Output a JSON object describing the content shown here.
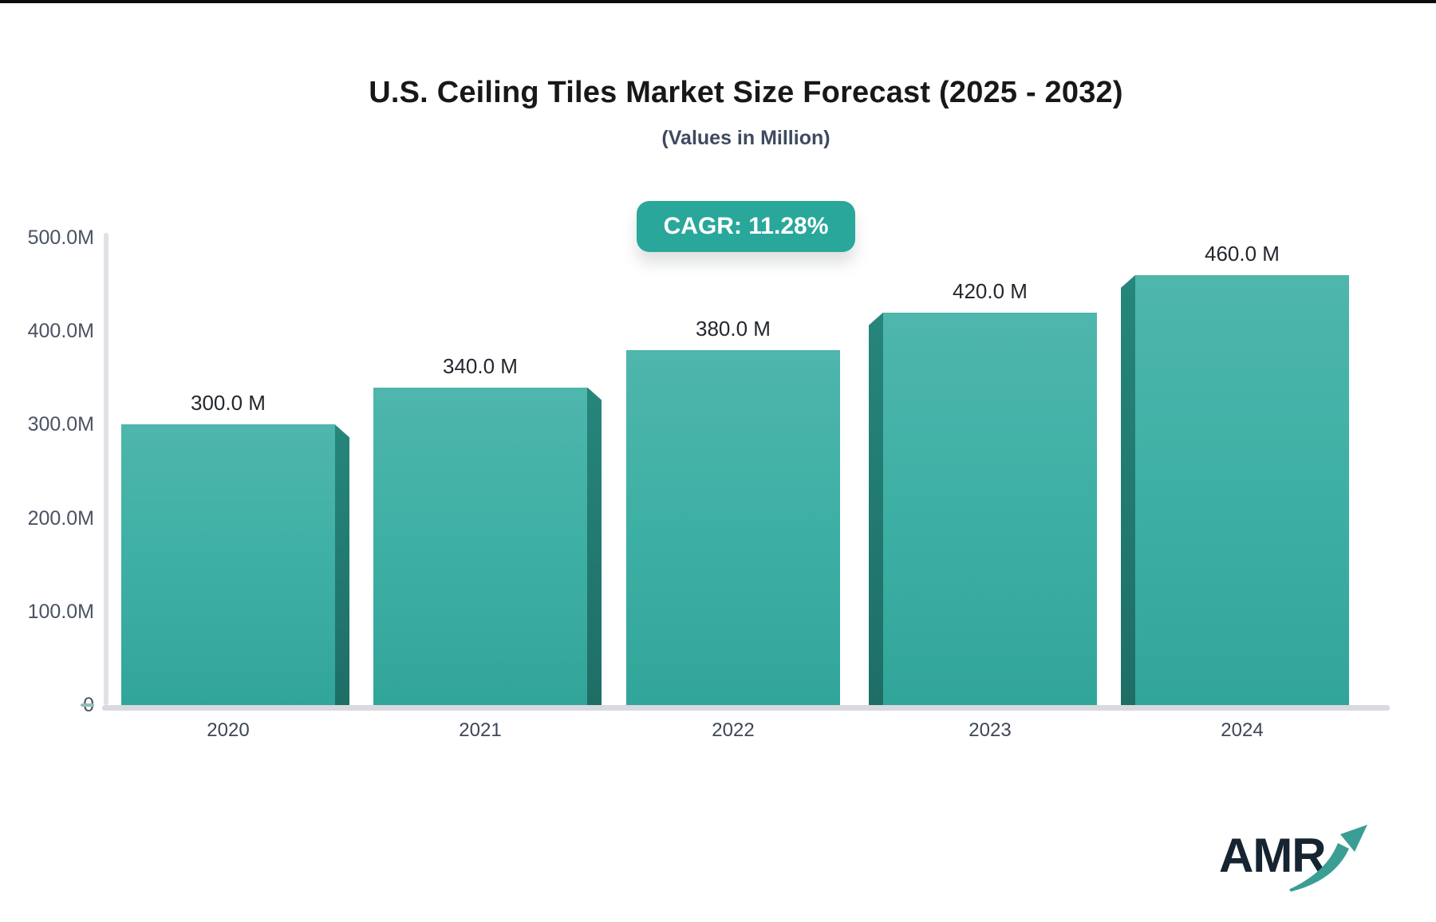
{
  "header": {
    "title": "U.S. Ceiling Tiles Market Size Forecast (2025 - 2032)",
    "subtitle": "(Values in Million)"
  },
  "badge": {
    "label": "CAGR: 11.28%",
    "bg_color": "#2aa79b",
    "text_color": "#ffffff"
  },
  "chart_data": {
    "type": "bar",
    "title": "U.S. Ceiling Tiles Market Size Forecast (2025 - 2032)",
    "subtitle": "(Values in Million)",
    "categories": [
      "2020",
      "2021",
      "2022",
      "2023",
      "2024"
    ],
    "values": [
      300,
      340,
      380,
      420,
      460
    ],
    "bar_labels": [
      "300.0 M",
      "340.0 M",
      "380.0 M",
      "420.0 M",
      "460.0 M"
    ],
    "ylim": [
      0,
      500
    ],
    "yticks": [
      0,
      100,
      200,
      300,
      400,
      500
    ],
    "ytick_labels": [
      "0",
      "100.0M",
      "200.0M",
      "300.0M",
      "400.0M",
      "500.0M"
    ],
    "grid": "off",
    "legend": "none",
    "bar_color_top": "#4fb6ac",
    "bar_color_bottom": "#32a59a",
    "bar_side_color": "#1f7c72",
    "annotation": "CAGR: 11.28%"
  },
  "logo": {
    "text": "AMR",
    "text_color": "#152430",
    "arrow_color": "#3b9e95"
  }
}
